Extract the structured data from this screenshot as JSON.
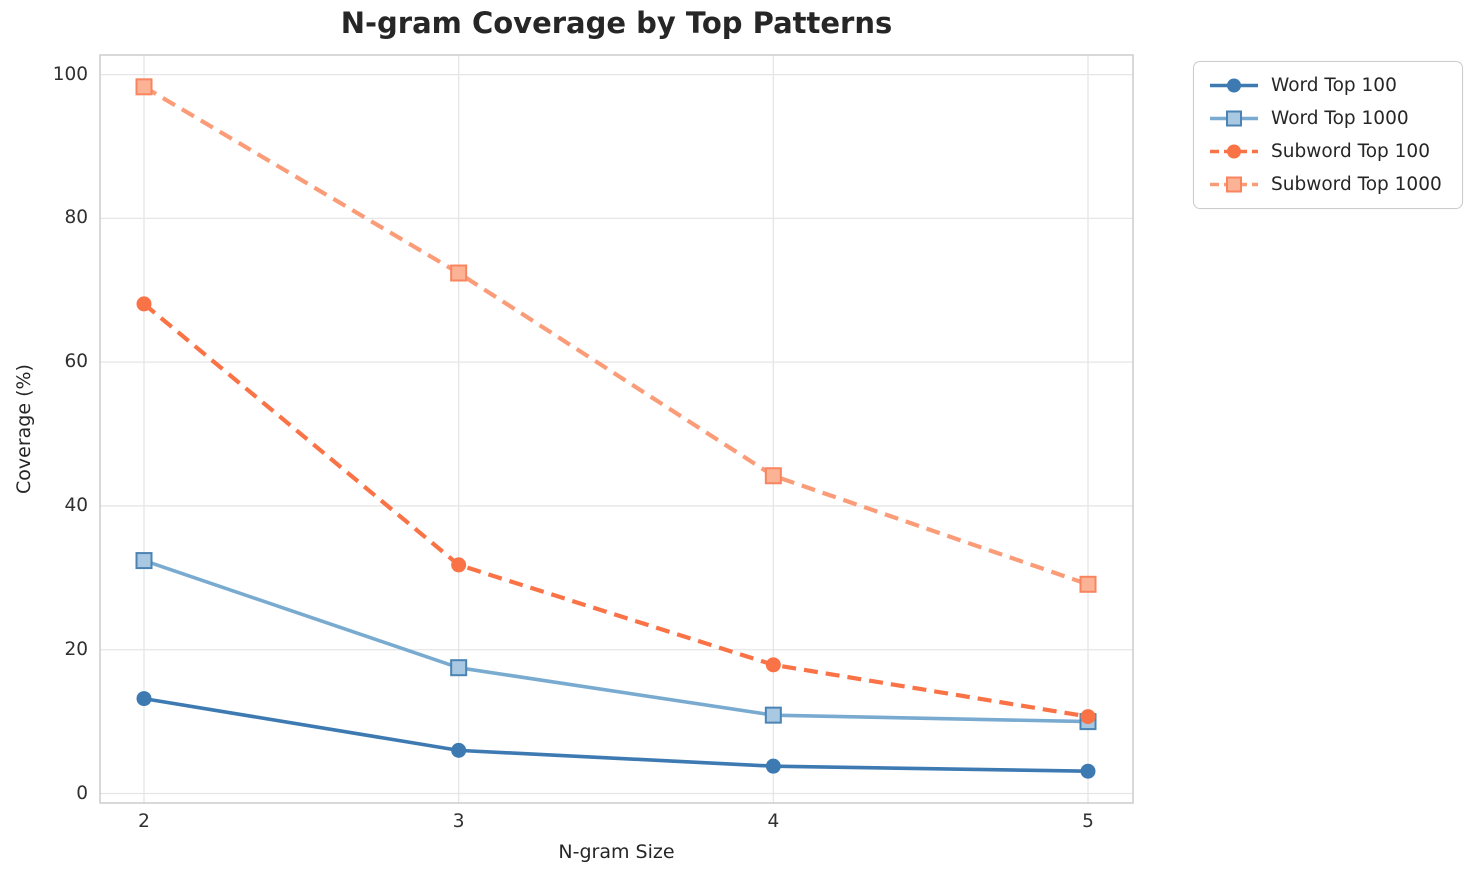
{
  "chart_data": {
    "type": "line",
    "title": "N-gram Coverage by Top Patterns",
    "xlabel": "N-gram Size",
    "ylabel": "Coverage (%)",
    "x": [
      2,
      3,
      4,
      5
    ],
    "yticks": [
      0,
      20,
      40,
      60,
      80,
      100
    ],
    "ylim": [
      0,
      100
    ],
    "grid": true,
    "legend_position": "outside-top-right",
    "background_color": "#ffffff",
    "gridline_color": "#e6e6e6",
    "spine_color": "#c9c9c9",
    "series": [
      {
        "name": "Word Top 100",
        "values": [
          13.2,
          6.0,
          3.8,
          3.1
        ],
        "color": "#3e7ab2",
        "line_style": "solid",
        "marker": "circle",
        "marker_fill": "#3e7ab2",
        "marker_edge": "#3e7ab2"
      },
      {
        "name": "Word Top 1000",
        "values": [
          32.4,
          17.5,
          10.9,
          10.0
        ],
        "color": "#79abd0",
        "line_style": "solid",
        "marker": "square",
        "marker_fill": "#a9c8e1",
        "marker_edge": "#4a83b4"
      },
      {
        "name": "Subword Top 100",
        "values": [
          68.1,
          31.8,
          17.9,
          10.7
        ],
        "color": "#fa7346",
        "line_style": "dashed",
        "marker": "circle",
        "marker_fill": "#fa7346",
        "marker_edge": "#fa7346"
      },
      {
        "name": "Subword Top 1000",
        "values": [
          98.3,
          72.4,
          44.2,
          29.1
        ],
        "color": "#fb9c79",
        "line_style": "dashed",
        "marker": "square",
        "marker_fill": "#fcb295",
        "marker_edge": "#f8855f"
      }
    ]
  }
}
